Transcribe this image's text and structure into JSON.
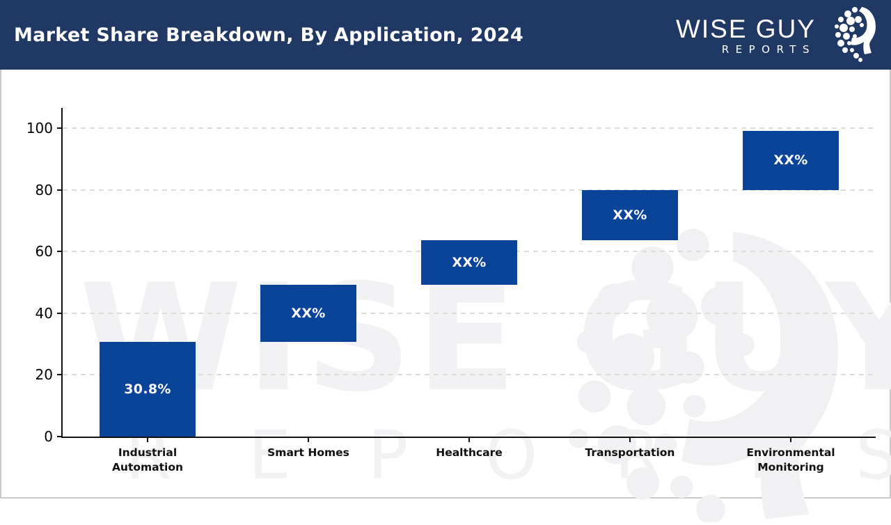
{
  "header": {
    "title": "Market Share Breakdown, By Application, 2024",
    "logo": {
      "line1": "WISE GUY",
      "line2": "REPORTS"
    }
  },
  "watermark": {
    "line1": "WISE GUY",
    "line2": "REPORTS"
  },
  "colors": {
    "header_bg": "#1f3864",
    "bar": "#0a4499",
    "grid": "#dcdcdc",
    "axis": "#111111",
    "bar_label_text": "#ffffff",
    "tick_text": "#000000",
    "watermark": "#f2f2f4"
  },
  "chart_data": {
    "type": "bar",
    "subtype": "waterfall",
    "title": "Market Share Breakdown, By Application, 2024",
    "categories": [
      "Industrial Automation",
      "Smart Homes",
      "Healthcare",
      "Transportation",
      "Environmental Monitoring"
    ],
    "category_lines": [
      [
        "Industrial",
        "Automation"
      ],
      [
        "Smart Homes"
      ],
      [
        "Healthcare"
      ],
      [
        "Transportation"
      ],
      [
        "Environmental",
        "Monitoring"
      ]
    ],
    "segments": [
      {
        "start": 0,
        "end": 30.8,
        "label": "30.8%"
      },
      {
        "start": 30.8,
        "end": 49.3,
        "label": "XX%"
      },
      {
        "start": 49.3,
        "end": 63.6,
        "label": "XX%"
      },
      {
        "start": 63.6,
        "end": 79.9,
        "label": "XX%"
      },
      {
        "start": 79.9,
        "end": 99.2,
        "label": "XX%"
      }
    ],
    "y_ticks": [
      0,
      20,
      40,
      60,
      80,
      100
    ],
    "ylim": [
      0,
      106
    ],
    "xlabel": "",
    "ylabel": "",
    "grid": "horizontal-dashed",
    "legend": "none"
  }
}
